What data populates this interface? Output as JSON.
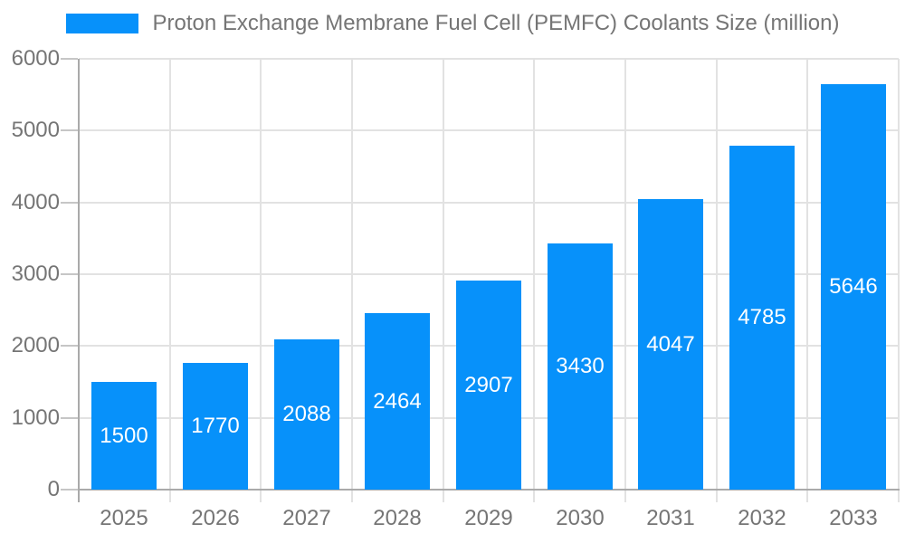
{
  "chart_data": {
    "type": "bar",
    "title": "Proton Exchange Membrane Fuel Cell (PEMFC) Coolants Size (million)",
    "legend_position": "top",
    "categories": [
      "2025",
      "2026",
      "2027",
      "2028",
      "2029",
      "2030",
      "2031",
      "2032",
      "2033"
    ],
    "series": [
      {
        "name": "Proton Exchange Membrane Fuel Cell (PEMFC) Coolants Size (million)",
        "values": [
          1500,
          1770,
          2088,
          2464,
          2907,
          3430,
          4047,
          4785,
          5646
        ]
      }
    ],
    "data_labels_shown": true,
    "xlabel": "",
    "ylabel": "",
    "ylim": [
      0,
      6000
    ],
    "y_ticks": [
      0,
      1000,
      2000,
      3000,
      4000,
      5000,
      6000
    ],
    "grid": true,
    "colors": {
      "bar": "#0791fa",
      "grid_line": "#e2e2e2",
      "axis_line": "#aaaaaa",
      "tick_line": "#c6c6c6",
      "tick_text": "#757575",
      "data_label_text": "#ffffff",
      "background": "#ffffff"
    }
  }
}
